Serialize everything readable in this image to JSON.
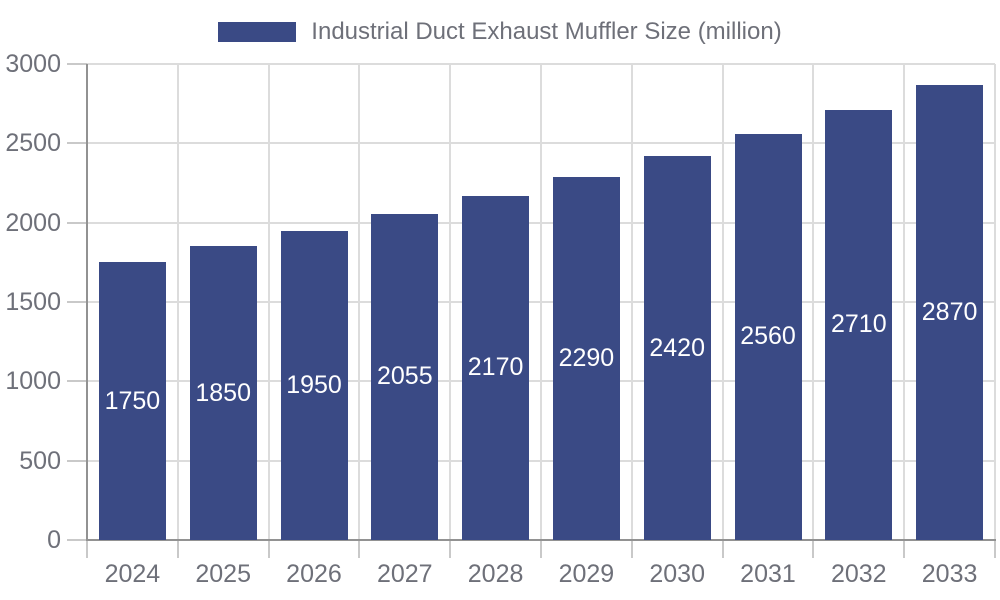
{
  "chart_data": {
    "type": "bar",
    "title": "Industrial Duct Exhaust Muffler Size (million)",
    "legend": [
      "Industrial Duct Exhaust Muffler Size (million)"
    ],
    "legend_position": "top-center",
    "categories": [
      "2024",
      "2025",
      "2026",
      "2027",
      "2028",
      "2029",
      "2030",
      "2031",
      "2032",
      "2033"
    ],
    "values": [
      1750,
      1850,
      1950,
      2055,
      2170,
      2290,
      2420,
      2560,
      2710,
      2870
    ],
    "xlabel": "",
    "ylabel": "",
    "ylim": [
      0,
      3000
    ],
    "yticks": [
      0,
      500,
      1000,
      1500,
      2000,
      2500,
      3000
    ],
    "grid": true,
    "value_labels": "inside-middle"
  },
  "colors": {
    "bar": "#3A4A85",
    "grid": "#DCDCDC",
    "axis_line": "#929292",
    "tick_mark": "#C9C9C9",
    "axis_label": "#6E7079",
    "legend_text": "#6E7079",
    "value_label": "#FFFFFF",
    "background": "#FFFFFF"
  }
}
